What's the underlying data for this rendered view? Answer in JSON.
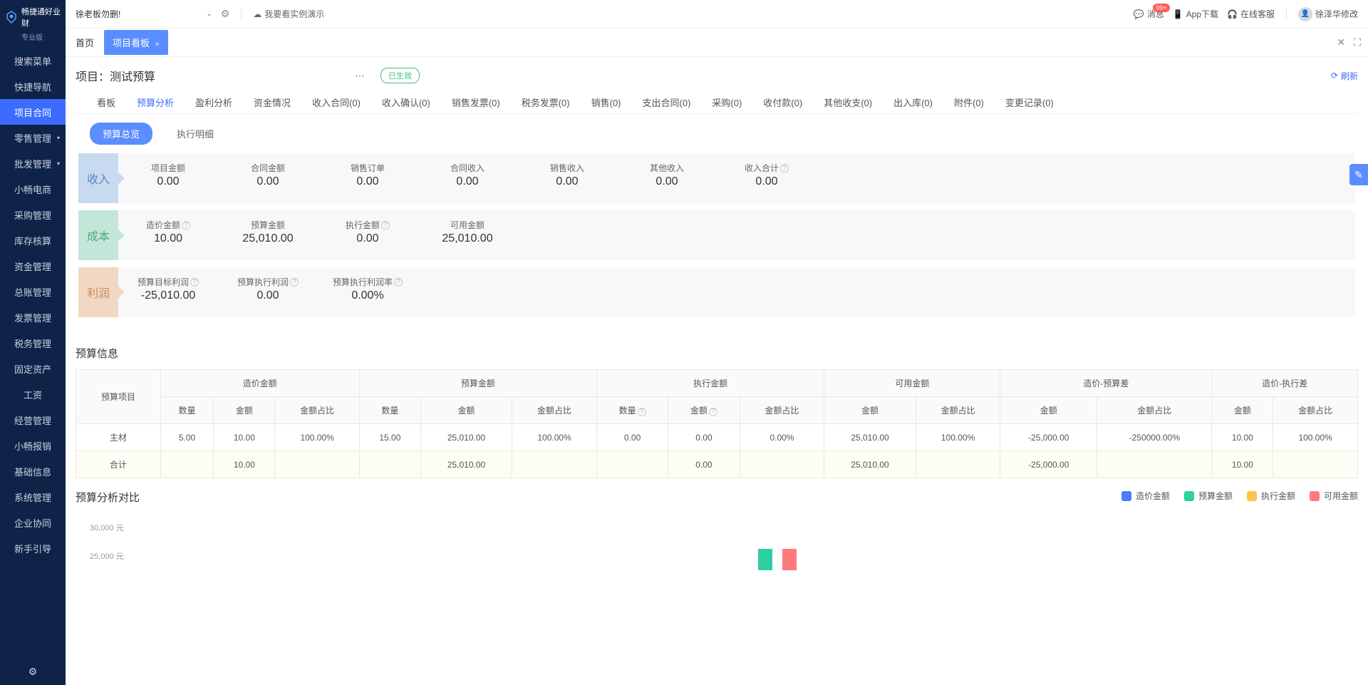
{
  "brand": {
    "name": "畅捷通好业财",
    "edition": "专业版"
  },
  "sidebar": {
    "items": [
      {
        "label": "搜索菜单",
        "active": false
      },
      {
        "label": "快捷导航",
        "active": false
      },
      {
        "label": "项目合同",
        "active": true
      },
      {
        "label": "零售管理",
        "active": false,
        "expand": true
      },
      {
        "label": "批发管理",
        "active": false,
        "expand": true
      },
      {
        "label": "小畅电商",
        "active": false
      },
      {
        "label": "采购管理",
        "active": false
      },
      {
        "label": "库存核算",
        "active": false
      },
      {
        "label": "资金管理",
        "active": false
      },
      {
        "label": "总账管理",
        "active": false
      },
      {
        "label": "发票管理",
        "active": false
      },
      {
        "label": "税务管理",
        "active": false
      },
      {
        "label": "固定资产",
        "active": false
      },
      {
        "label": "工资",
        "active": false
      },
      {
        "label": "经营管理",
        "active": false
      },
      {
        "label": "小畅报销",
        "active": false
      },
      {
        "label": "基础信息",
        "active": false
      },
      {
        "label": "系统管理",
        "active": false
      },
      {
        "label": "企业协同",
        "active": false
      },
      {
        "label": "新手引导",
        "active": false
      }
    ]
  },
  "topbar": {
    "org": "徐老板勿删!",
    "demo": "我要看实例演示",
    "msg": "消息",
    "msg_badge": "99+",
    "download": "App下载",
    "service": "在线客服",
    "user": "徐泽华修改"
  },
  "tabs": {
    "home": "首页",
    "active": "项目看板"
  },
  "project": {
    "label": "项目：",
    "name": "测试预算",
    "status": "已生效",
    "refresh": "刷新"
  },
  "subtabs": [
    "看板",
    "预算分析",
    "盈利分析",
    "资金情况",
    "收入合同(0)",
    "收入确认(0)",
    "销售发票(0)",
    "税务发票(0)",
    "销售(0)",
    "支出合同(0)",
    "采购(0)",
    "收付款(0)",
    "其他收支(0)",
    "出入库(0)",
    "附件(0)",
    "变更记录(0)"
  ],
  "subtab_active": 1,
  "pilltabs": [
    "预算总览",
    "执行明细"
  ],
  "summary": {
    "income": {
      "tag": "收入",
      "cells": [
        {
          "l": "项目金额",
          "v": "0.00"
        },
        {
          "l": "合同金额",
          "v": "0.00"
        },
        {
          "l": "销售订单",
          "v": "0.00"
        },
        {
          "l": "合同收入",
          "v": "0.00"
        },
        {
          "l": "销售收入",
          "v": "0.00"
        },
        {
          "l": "其他收入",
          "v": "0.00"
        },
        {
          "l": "收入合计",
          "v": "0.00",
          "help": true
        }
      ]
    },
    "cost": {
      "tag": "成本",
      "cells": [
        {
          "l": "造价金额",
          "v": "10.00",
          "help": true
        },
        {
          "l": "预算金额",
          "v": "25,010.00"
        },
        {
          "l": "执行金额",
          "v": "0.00",
          "help": true
        },
        {
          "l": "可用金额",
          "v": "25,010.00"
        }
      ]
    },
    "profit": {
      "tag": "利润",
      "cells": [
        {
          "l": "预算目标利润",
          "v": "-25,010.00",
          "help": true
        },
        {
          "l": "预算执行利润",
          "v": "0.00",
          "help": true
        },
        {
          "l": "预算执行利润率",
          "v": "0.00%",
          "help": true
        }
      ]
    }
  },
  "budget_section": "预算信息",
  "table": {
    "group_headers": [
      "预算项目",
      "造价金额",
      "预算金额",
      "执行金额",
      "可用金额",
      "造价-预算差",
      "造价-执行差"
    ],
    "sub_headers": [
      "数量",
      "金额",
      "金额占比",
      "数量",
      "金额",
      "金额占比",
      "数量",
      "金额",
      "金额占比",
      "金额",
      "金额占比",
      "金额",
      "金额占比",
      "金额",
      "金额占比"
    ],
    "rows": [
      {
        "name": "主材",
        "cells": [
          "5.00",
          "10.00",
          "100.00%",
          "15.00",
          "25,010.00",
          "100.00%",
          "0.00",
          "0.00",
          "0.00%",
          "25,010.00",
          "100.00%",
          "-25,000.00",
          "-250000.00%",
          "10.00",
          "100.00%"
        ],
        "red": [
          13,
          14
        ]
      }
    ],
    "total": {
      "name": "合计",
      "cells": [
        "",
        "10.00",
        "",
        "",
        "25,010.00",
        "",
        "",
        "0.00",
        "",
        "25,010.00",
        "",
        "-25,000.00",
        "",
        "10.00",
        ""
      ]
    }
  },
  "compare_section": "预算分析对比",
  "legend": [
    {
      "c": "#4a7dff",
      "l": "造价金额"
    },
    {
      "c": "#2ecfa0",
      "l": "预算金额"
    },
    {
      "c": "#ffc34d",
      "l": "执行金额"
    },
    {
      "c": "#ff7b7b",
      "l": "可用金额"
    }
  ],
  "chart": {
    "yticks": [
      "30,000 元",
      "25,000 元"
    ],
    "bars": [
      {
        "color": "#2ecfa0",
        "left": "52%",
        "h": 30
      },
      {
        "color": "#ff7b7b",
        "left": "54%",
        "h": 30
      }
    ]
  }
}
